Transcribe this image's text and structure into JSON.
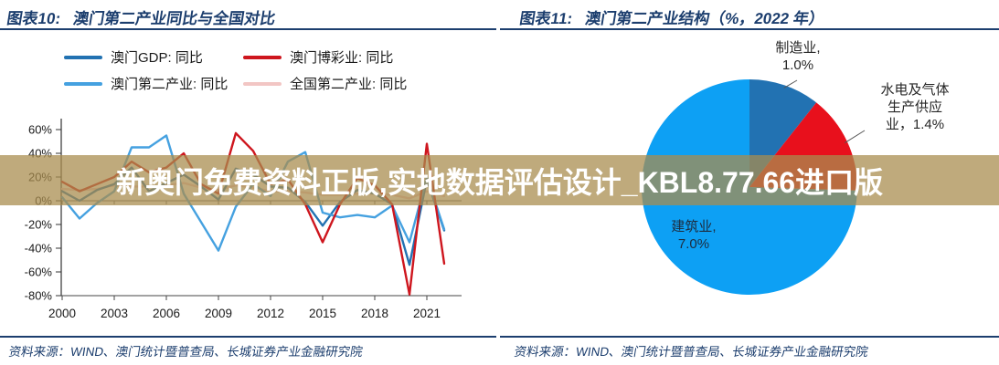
{
  "watermark": {
    "text": "新奥门免费资料正版,实地数据评估设计_KBL8.77.66进口版"
  },
  "left_panel": {
    "title_label": "图表10:",
    "title_text": "澳门第二产业同比与全国对比",
    "legend": [
      {
        "label": "澳门GDP: 同比"
      },
      {
        "label": "澳门博彩业: 同比"
      },
      {
        "label": "澳门第二产业: 同比"
      },
      {
        "label": "全国第二产业: 同比"
      }
    ],
    "source": "资料来源：WIND、澳门统计暨普查局、长城证券产业金融研究院"
  },
  "right_panel": {
    "title_label": "图表11:",
    "title_text": "澳门第二产业结构（%，2022 年）",
    "source": "资料来源：WIND、澳门统计暨普查局、长城证券产业金融研究院"
  },
  "pie_labels": {
    "mfg_line1": "制造业,",
    "mfg_line2": "1.0%",
    "util_line1": "水电及气体",
    "util_line2": "生产供应",
    "util_line3": "业，1.4%",
    "constr_line1": "建筑业,",
    "constr_line2": "7.0%"
  },
  "chart_data": [
    {
      "type": "line",
      "title": "澳门第二产业同比与全国对比",
      "unit": "%",
      "x": [
        2000,
        2001,
        2002,
        2003,
        2004,
        2005,
        2006,
        2007,
        2008,
        2009,
        2010,
        2011,
        2012,
        2013,
        2014,
        2015,
        2016,
        2017,
        2018,
        2019,
        2020,
        2021,
        2022
      ],
      "xticks": [
        2000,
        2003,
        2006,
        2009,
        2012,
        2015,
        2018,
        2021
      ],
      "ylim": [
        -80,
        60
      ],
      "yticks": [
        60,
        40,
        20,
        0,
        -20,
        -40,
        -60,
        -80
      ],
      "grid": false,
      "legend_position": "top",
      "series": [
        {
          "name": "澳门GDP: 同比",
          "color": "#2272B2",
          "values": [
            8,
            0,
            9,
            14,
            28,
            8,
            15,
            22,
            12,
            1,
            27,
            22,
            12,
            11,
            -1,
            -21,
            -1,
            9,
            6,
            -3,
            -54,
            18,
            -25
          ]
        },
        {
          "name": "澳门博彩业: 同比",
          "color": "#CE161E",
          "values": [
            16,
            8,
            14,
            20,
            33,
            24,
            28,
            40,
            14,
            6,
            57,
            42,
            14,
            18,
            -3,
            -35,
            -3,
            19,
            13,
            -3,
            -79,
            48,
            -53
          ]
        },
        {
          "name": "澳门第二产业: 同比",
          "color": "#45A1E0",
          "values": [
            3,
            -15,
            -2,
            8,
            45,
            45,
            55,
            6,
            -18,
            -42,
            -5,
            14,
            4,
            33,
            41,
            -10,
            -14,
            -12,
            -14,
            -4,
            -35,
            20,
            -24
          ]
        },
        {
          "name": "全国第二产业: 同比",
          "color": "#F2C6C4",
          "values": [
            10,
            9,
            10,
            13,
            12,
            12,
            13,
            15,
            11,
            9,
            13,
            11,
            8,
            8,
            7,
            5,
            5,
            6,
            6,
            5,
            2,
            8,
            4
          ]
        }
      ]
    },
    {
      "type": "pie",
      "title": "澳门第二产业结构（%，2022 年）",
      "slices": [
        {
          "label": "制造业",
          "value": 1.0,
          "color": "#2272B2"
        },
        {
          "label": "水电及气体生产供应业",
          "value": 1.4,
          "color": "#E8101C"
        },
        {
          "label": "建筑业",
          "value": 7.0,
          "color": "#0DA0F4"
        }
      ],
      "start_at": "12-oclock",
      "direction": "clockwise"
    }
  ]
}
